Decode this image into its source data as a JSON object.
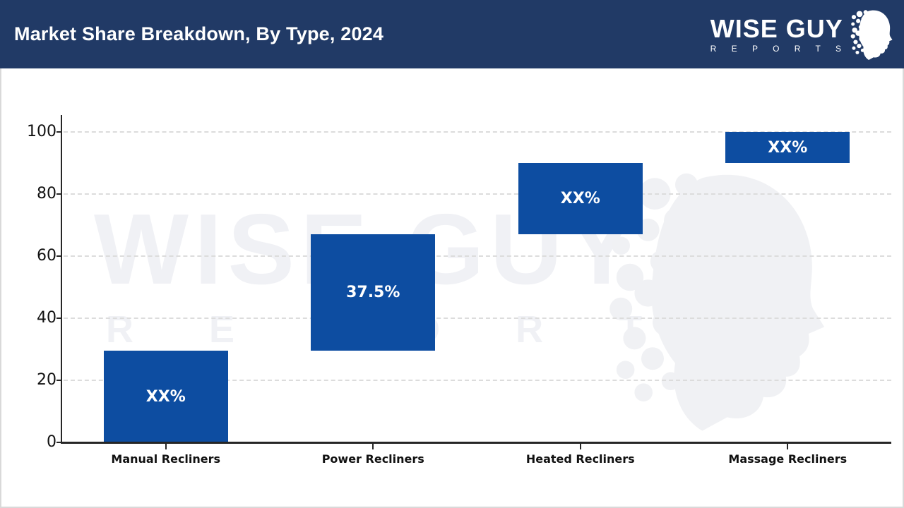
{
  "header": {
    "title": "Market Share Breakdown, By Type, 2024",
    "logo": {
      "line1": "WISE GUY",
      "line2": "R E P O R T S"
    }
  },
  "watermark": {
    "line1": "WISE GUY",
    "line2": "R E P O R T S"
  },
  "chart_data": {
    "type": "bar",
    "variant": "floating-segment-waterfall",
    "title": "Market Share Breakdown, By Type, 2024",
    "categories": [
      "Manual Recliners",
      "Power Recliners",
      "Heated Recliners",
      "Massage Recliners"
    ],
    "segments": [
      {
        "category": "Manual Recliners",
        "start": 0,
        "end": 29.5,
        "label": "XX%"
      },
      {
        "category": "Power Recliners",
        "start": 29.5,
        "end": 67,
        "label": "37.5%"
      },
      {
        "category": "Heated Recliners",
        "start": 67,
        "end": 90,
        "label": "XX%"
      },
      {
        "category": "Massage Recliners",
        "start": 90,
        "end": 100,
        "label": "XX%"
      }
    ],
    "yticks": [
      0,
      20,
      40,
      60,
      80,
      100
    ],
    "ylim": [
      0,
      105
    ],
    "xlabel": "",
    "ylabel": "",
    "grid": "horizontal-dashed",
    "legend": false
  },
  "colors": {
    "header_bg": "#213a66",
    "bar": "#0d4da1",
    "grid": "#dcdcdc",
    "axis": "#262626",
    "bar_label_text": "#ffffff",
    "watermark": "#f0f1f5",
    "frame_border": "#d9d9d9"
  }
}
